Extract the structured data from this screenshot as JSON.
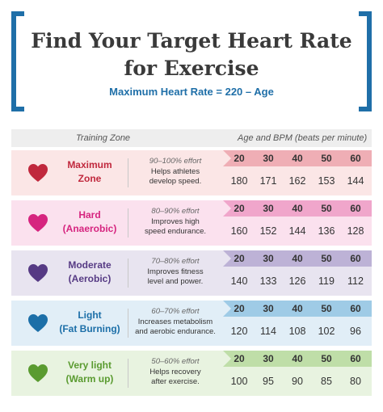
{
  "header": {
    "title_line1": "Find Your Target Heart Rate",
    "title_line2": "for Exercise",
    "formula": "Maximum Heart Rate = 220 – Age"
  },
  "table": {
    "col_zone": "Training Zone",
    "col_age": "Age and BPM (beats per minute)",
    "ages": [
      "20",
      "30",
      "40",
      "50",
      "60"
    ],
    "rows": [
      {
        "name1": "Maximum",
        "name2": "Zone",
        "effort": "90–100% effort",
        "desc1": "Helps athletes",
        "desc2": "develop speed.",
        "bpm": [
          "180",
          "171",
          "162",
          "153",
          "144"
        ],
        "color": "#c0283d",
        "bg": "#fbe6e6",
        "age_bg": "#efaeb5"
      },
      {
        "name1": "Hard",
        "name2": "(Anaerobic)",
        "effort": "80–90% effort",
        "desc1": "Improves high",
        "desc2": "speed endurance.",
        "bpm": [
          "160",
          "152",
          "144",
          "136",
          "128"
        ],
        "color": "#d6247f",
        "bg": "#fbe1ee",
        "age_bg": "#f0a6cb"
      },
      {
        "name1": "Moderate",
        "name2": "(Aerobic)",
        "effort": "70–80% effort",
        "desc1": "Improves fitness",
        "desc2": "level and power.",
        "bpm": [
          "140",
          "133",
          "126",
          "119",
          "112"
        ],
        "color": "#563a84",
        "bg": "#e8e4f0",
        "age_bg": "#bdb2d6"
      },
      {
        "name1": "Light",
        "name2": "(Fat Burning)",
        "effort": "60–70% effort",
        "desc1": "Increases metabolism",
        "desc2": "and aerobic endurance.",
        "bpm": [
          "120",
          "114",
          "108",
          "102",
          "96"
        ],
        "color": "#1c6fa8",
        "bg": "#e1eef7",
        "age_bg": "#9fcbe6"
      },
      {
        "name1": "Very light",
        "name2": "(Warm up)",
        "effort": "50–60% effort",
        "desc1": "Helps recovery",
        "desc2": "after exercise.",
        "bpm": [
          "100",
          "95",
          "90",
          "85",
          "80"
        ],
        "color": "#5a9b30",
        "bg": "#e8f3e0",
        "age_bg": "#bfdea8"
      }
    ]
  }
}
